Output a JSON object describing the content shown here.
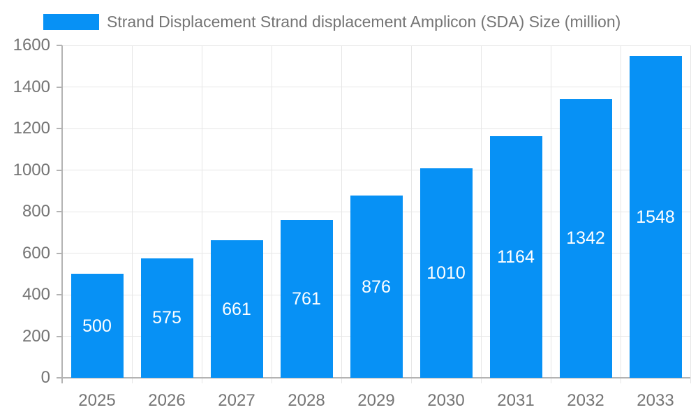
{
  "colors": {
    "bar": "#0791f5",
    "legend_text": "#757575",
    "axis_text": "#757575",
    "value_label_text": "#ffffff",
    "grid_line": "#e6e6e6",
    "axis_line": "#b3b3b3",
    "background": "#ffffff"
  },
  "chart_data": {
    "type": "bar",
    "series_name": "Strand Displacement Strand displacement Amplicon (SDA) Size (million)",
    "categories": [
      "2025",
      "2026",
      "2027",
      "2028",
      "2029",
      "2030",
      "2031",
      "2032",
      "2033"
    ],
    "values": [
      500,
      575,
      661,
      761,
      876,
      1010,
      1164,
      1342,
      1548
    ],
    "title": "",
    "xlabel": "",
    "ylabel": "",
    "ylim": [
      0,
      1600
    ],
    "yticks": [
      0,
      200,
      400,
      600,
      800,
      1000,
      1200,
      1400,
      1600
    ],
    "grid": true,
    "legend_position": "top-left",
    "value_labels": "inside-center"
  }
}
